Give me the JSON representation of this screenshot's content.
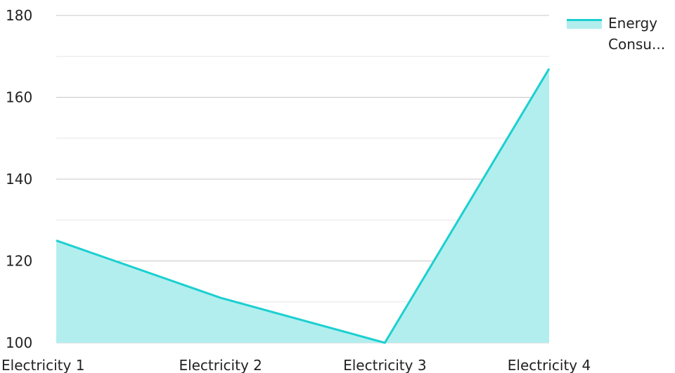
{
  "chart_data": {
    "type": "area",
    "categories": [
      "Electricity 1",
      "Electricity 2",
      "Electricity 3",
      "Electricity 4"
    ],
    "series": [
      {
        "name": "Energy Consu...",
        "values": [
          125,
          111,
          100,
          167
        ]
      }
    ],
    "ylim": [
      100,
      180
    ],
    "yticks": [
      "100",
      "120",
      "140",
      "160",
      "180"
    ],
    "title": "",
    "xlabel": "",
    "ylabel": "",
    "grid": true,
    "legend_position": "top-right",
    "colors": {
      "line": "#1ccfd0",
      "fill": "#b2eeee",
      "grid_major": "#c8c8c8",
      "grid_minor": "#e6e6e6"
    }
  },
  "legend": {
    "line1": "Energy",
    "line2": "Consu..."
  }
}
